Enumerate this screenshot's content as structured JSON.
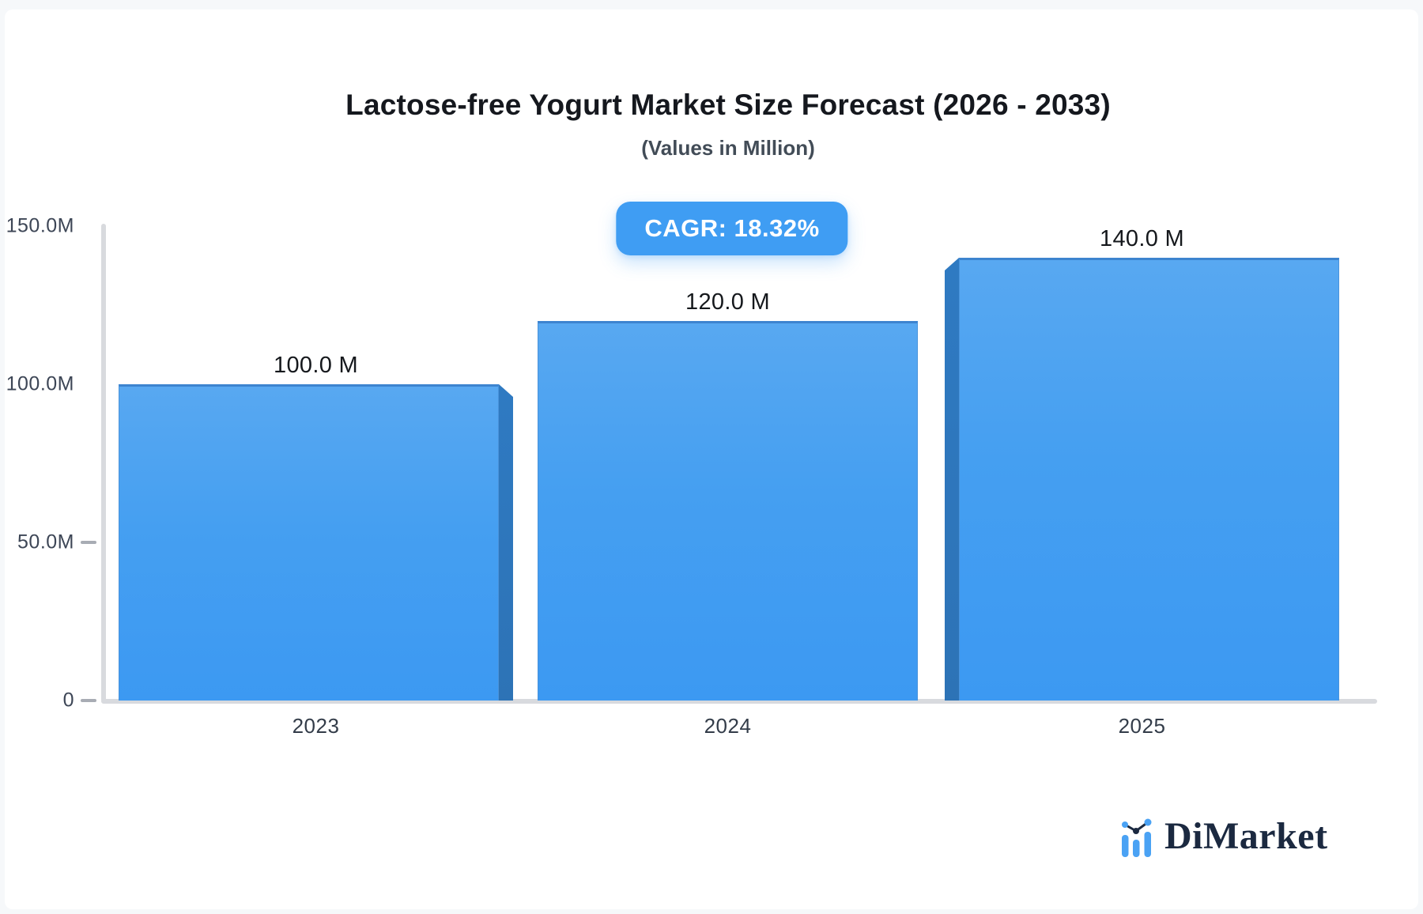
{
  "header": {
    "title": "Lactose-free Yogurt Market Size Forecast (2026 - 2033)",
    "subtitle": "(Values in Million)",
    "cagr_badge": "CAGR: 18.32%"
  },
  "chart_data": {
    "type": "bar",
    "title": "Lactose-free Yogurt Market Size Forecast (2026 - 2033)",
    "subtitle": "(Values in Million)",
    "unit": "Million",
    "cagr_percent": 18.32,
    "categories": [
      "2023",
      "2024",
      "2025"
    ],
    "values": [
      100,
      120,
      140
    ],
    "value_labels": [
      "100.0 M",
      "120.0 M",
      "140.0 M"
    ],
    "yticks": [
      {
        "value": 0,
        "label": "0"
      },
      {
        "value": 50,
        "label": "50.0M"
      },
      {
        "value": 100,
        "label": "100.0M"
      },
      {
        "value": 150,
        "label": "150.0M"
      }
    ],
    "ylim": [
      0,
      150
    ],
    "xlabel": "",
    "ylabel": "",
    "grid": false,
    "legend": false,
    "colors": {
      "bar_top": "#58a8f1",
      "bar_bottom": "#3c99f2",
      "bar_side": "#2e75bb",
      "accent_badge": "#3f9df3",
      "axis": "#d8dade"
    }
  },
  "footer": {
    "logo_text": "DiMarket"
  }
}
